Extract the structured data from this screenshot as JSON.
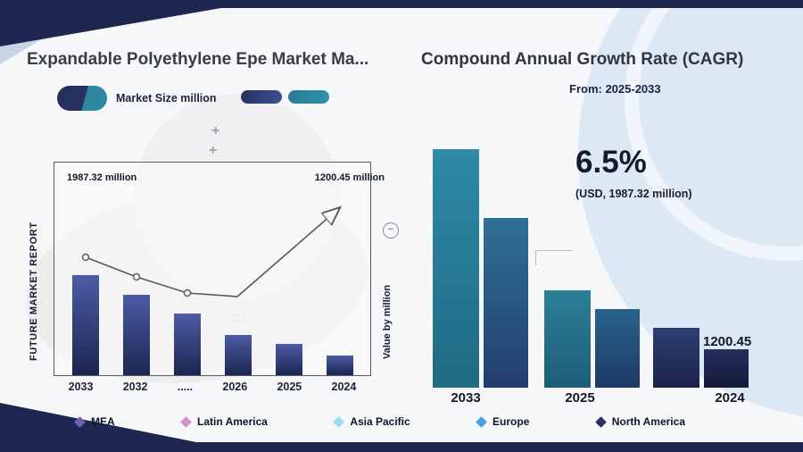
{
  "page": {
    "title_left": "Expandable Polyethylene Epe Market Ma...",
    "title_right": "Compound Annual Growth Rate (CAGR)",
    "subtitle_right": "From: 2025-2033"
  },
  "top_legend": {
    "label": "Market Size million"
  },
  "colors": {
    "navy": "#1e2750",
    "teal": "#2f86a0",
    "bar_gradient_top": "#4c5ca6",
    "bar_gradient_bottom": "#1c2550",
    "background_circle": "#dce9f4"
  },
  "chart_data": [
    {
      "type": "bar",
      "title": "Market Size million",
      "categories": [
        "2033",
        "2032",
        ".....",
        "2026",
        "2025",
        "2024"
      ],
      "values": [
        100,
        80,
        62,
        40,
        31,
        20
      ],
      "annotations": {
        "left": "1987.32 million",
        "right": "1200.45 million"
      },
      "ylabel": "FUTURE MARKET REPORT",
      "xlabel": "",
      "grid": false,
      "trend": "declining bars with rising arrow to 1200.45 million"
    },
    {
      "type": "bar",
      "title": "Compound Annual Growth Rate (CAGR)",
      "categories": [
        "2033",
        "2025",
        "2024"
      ],
      "series": [
        {
          "name": "primary",
          "values": [
            100,
            41,
            25
          ]
        },
        {
          "name": "secondary",
          "values": [
            71,
            33,
            16
          ]
        }
      ],
      "group_colors": [
        [
          [
            "#2e8aa6",
            "#1f6a84"
          ],
          [
            "#2f7099",
            "#223e6e"
          ]
        ],
        [
          [
            "#2b7f97",
            "#1d5e77"
          ],
          [
            "#28638b",
            "#1e3a66"
          ]
        ],
        [
          [
            "#2e3d72",
            "#1a2348"
          ],
          [
            "#252f5c",
            "#131a38"
          ]
        ]
      ],
      "ylabel": "Value by million",
      "xlabel": "",
      "grid": false,
      "cagr": "6.5%",
      "cagr_note": "(USD, 1987.32 million)",
      "value_label": "1200.45"
    }
  ],
  "bottom_legend": {
    "items": [
      {
        "label": "MEA",
        "color": "#6f5fae"
      },
      {
        "label": "Latin America",
        "color": "#d294c6"
      },
      {
        "label": "Asia Pacific",
        "color": "#9adcef"
      },
      {
        "label": "Europe",
        "color": "#44a5e0"
      },
      {
        "label": "North America",
        "color": "#273266"
      }
    ]
  }
}
